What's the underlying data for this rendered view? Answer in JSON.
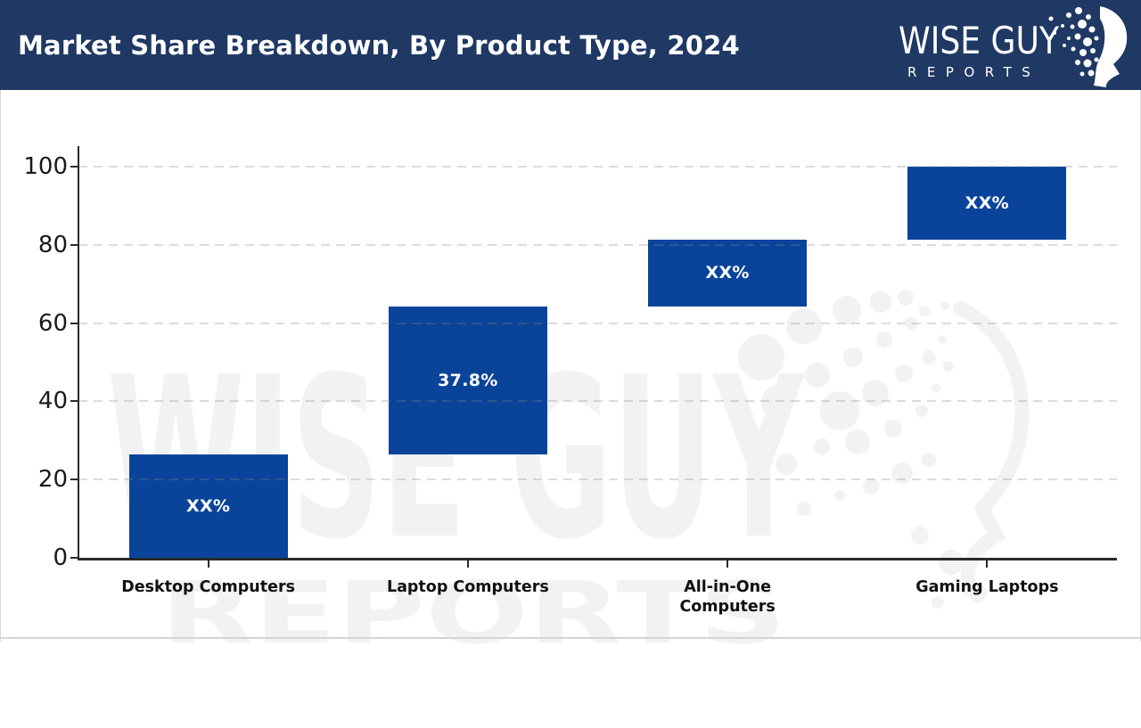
{
  "header": {
    "title": "Market Share Breakdown, By Product Type, 2024",
    "brand": {
      "wordmark_top": "WISE GUY",
      "wordmark_bottom": "REPORTS"
    }
  },
  "colors": {
    "header_bg": "#1f3864",
    "bar": "#0a449a",
    "bar_label": "#ffffff",
    "axis": "#2a2a2a",
    "watermark": "#f1f2f3"
  },
  "watermark": {
    "line1": "WISE GUY",
    "line2": "REPORTS"
  },
  "chart_data": {
    "type": "bar",
    "subtype": "floating-waterfall",
    "title": "Market Share Breakdown, By Product Type, 2024",
    "categories": [
      "Desktop Computers",
      "Laptop Computers",
      "All-in-One Computers",
      "Gaming Laptops"
    ],
    "category_label_lines": [
      [
        "Desktop Computers"
      ],
      [
        "Laptop Computers"
      ],
      [
        "All-in-One",
        "Computers"
      ],
      [
        "Gaming Laptops"
      ]
    ],
    "bars": [
      {
        "category": "Desktop Computers",
        "from": 0,
        "to": 26.4,
        "label": "XX%"
      },
      {
        "category": "Laptop Computers",
        "from": 26.4,
        "to": 64.2,
        "label": "37.8%"
      },
      {
        "category": "All-in-One Computers",
        "from": 64.2,
        "to": 81.4,
        "label": "XX%"
      },
      {
        "category": "Gaming Laptops",
        "from": 81.4,
        "to": 100,
        "label": "XX%"
      }
    ],
    "yticks": [
      0,
      20,
      40,
      60,
      80,
      100
    ],
    "ylim": [
      0,
      105
    ],
    "xlabel": "",
    "ylabel": "",
    "grid": "horizontal-dashed",
    "legend": null,
    "bar_color": "#0a449a",
    "watermark": "WISE GUY REPORTS"
  }
}
